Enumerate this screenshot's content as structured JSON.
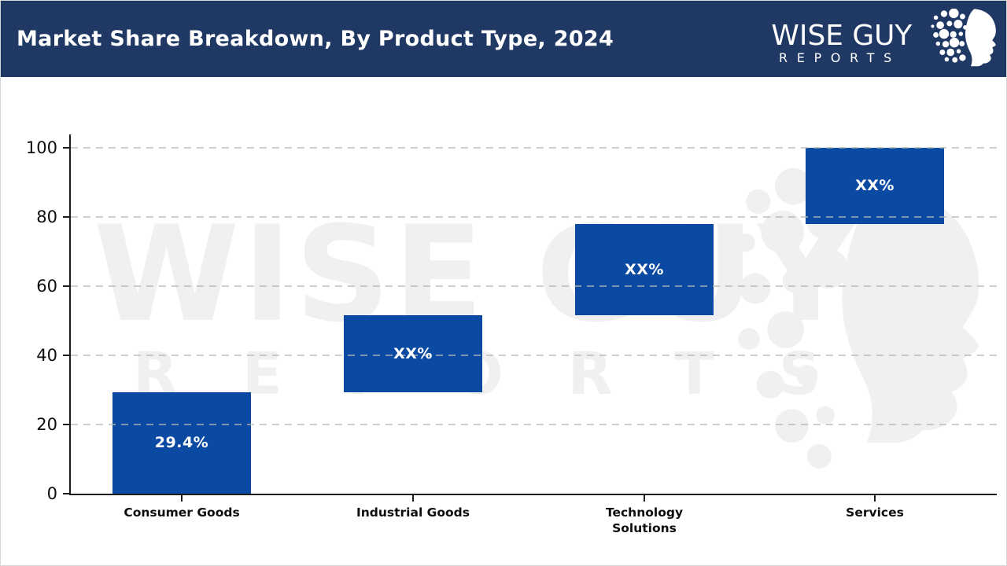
{
  "header": {
    "title": "Market Share Breakdown, By Product Type, 2024",
    "logo": {
      "line1": "WISE GUY",
      "line2": "REPORTS"
    }
  },
  "watermark": {
    "line1": "WISE GUY",
    "line2": "REPORTS"
  },
  "colors": {
    "header_bg": "#1f3864",
    "bar": "#0b4aa2",
    "axis": "#1c1c1c",
    "grid": "#bebebe",
    "bar_label_text": "#ffffff",
    "watermark": "#f0f0f2"
  },
  "chart_data": {
    "type": "bar",
    "subtype": "waterfall",
    "title": "Market Share Breakdown, By Product Type, 2024",
    "categories": [
      "Consumer Goods",
      "Industrial Goods",
      "Technology Solutions",
      "Services"
    ],
    "segments": [
      {
        "start": 0,
        "end": 29.4,
        "label": "29.4%"
      },
      {
        "start": 29.4,
        "end": 51.5,
        "label": "XX%"
      },
      {
        "start": 51.5,
        "end": 78.0,
        "label": "XX%"
      },
      {
        "start": 78.0,
        "end": 100,
        "label": "XX%"
      }
    ],
    "xlabel": "",
    "ylabel": "",
    "ylim": [
      0,
      100
    ],
    "yticks": [
      0,
      20,
      40,
      60,
      80,
      100
    ],
    "grid": "horizontal-dashed",
    "legend": "none",
    "bar_color": "#0b4aa2"
  }
}
